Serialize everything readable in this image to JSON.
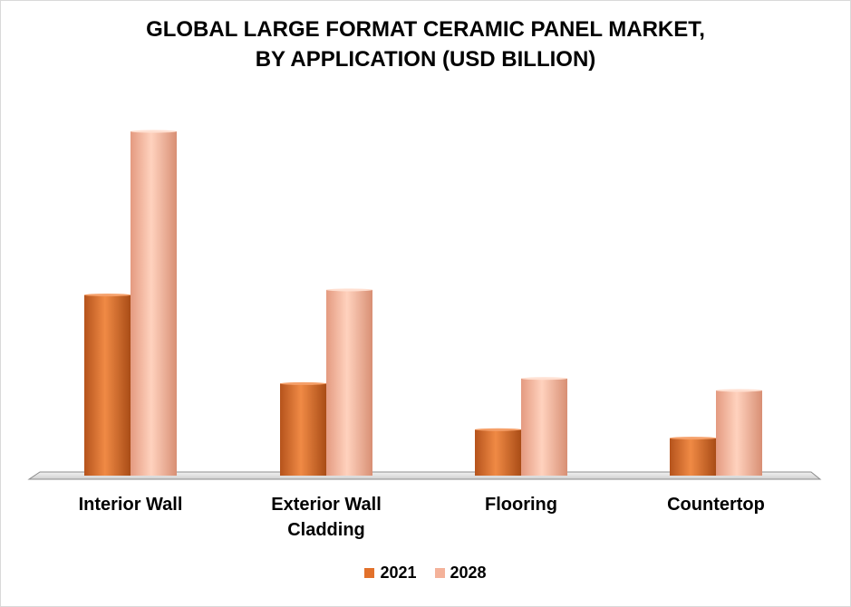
{
  "chart_data": {
    "type": "bar",
    "title_lines": [
      "GLOBAL LARGE FORMAT CERAMIC PANEL MARKET,",
      "BY APPLICATION (USD BILLION)"
    ],
    "categories": [
      [
        "Interior Wall"
      ],
      [
        "Exterior Wall",
        "Cladding"
      ],
      [
        "Flooring"
      ],
      [
        "Countertop"
      ]
    ],
    "series": [
      {
        "name": "2021",
        "color": "#e2712b",
        "values": [
          5.3,
          2.7,
          1.35,
          1.1
        ]
      },
      {
        "name": "2028",
        "color": "#f4b29a",
        "values": [
          10.1,
          5.45,
          2.85,
          2.5
        ]
      }
    ],
    "ylim": [
      0,
      10.5
    ],
    "grid": false,
    "legend": "bottom",
    "xlabel": "",
    "ylabel": ""
  }
}
